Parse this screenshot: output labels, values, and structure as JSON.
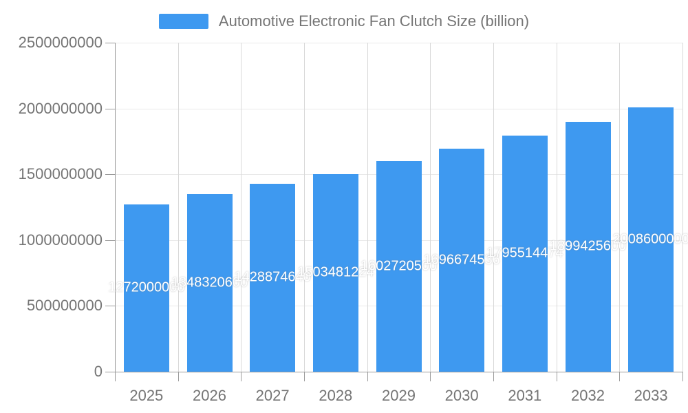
{
  "legend": {
    "label": "Automotive Electronic Fan Clutch Size (billion)"
  },
  "chart_data": {
    "type": "bar",
    "title": "Automotive Electronic Fan Clutch Size (billion)",
    "categories": [
      "2025",
      "2026",
      "2027",
      "2028",
      "2029",
      "2030",
      "2031",
      "2032",
      "2033"
    ],
    "series": [
      {
        "name": "Automotive Electronic Fan Clutch Size (billion)",
        "values": [
          1272000000,
          1348320600,
          1428874640,
          1503481224,
          1602720500,
          1696674536,
          1795514474,
          1899425600,
          2008600000
        ]
      }
    ],
    "xlabel": "",
    "ylabel": "",
    "ylim": [
      0,
      2500000000
    ],
    "y_tick_labels": [
      "0",
      "500000000",
      "1000000000",
      "1500000000",
      "2000000000",
      "2500000000"
    ],
    "grid": true,
    "legend_position": "top",
    "data_label_position": "inside-center"
  },
  "colors": {
    "bar": "#3e99f0",
    "axis_text": "#757575",
    "data_label_text": "#ffffff",
    "grid_horizontal": "#e9e9e9",
    "grid_vertical": "#d8d8d8",
    "axis_line": "#9a9a9a",
    "background": "#ffffff"
  }
}
